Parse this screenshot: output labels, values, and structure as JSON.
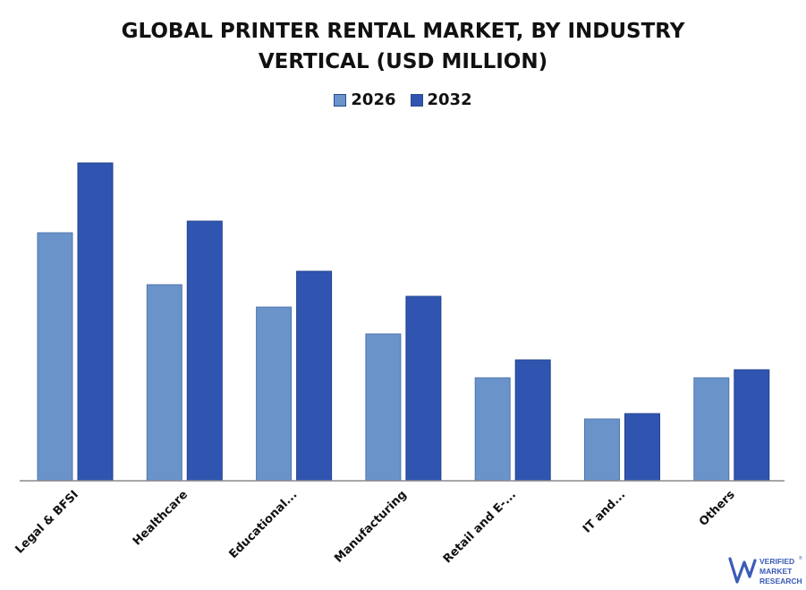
{
  "chart_data": {
    "type": "bar",
    "title": "GLOBAL PRINTER RENTAL MARKET, BY INDUSTRY VERTICAL (USD MILLION)",
    "title_lines": [
      "GLOBAL PRINTER RENTAL MARKET, BY INDUSTRY",
      "VERTICAL (USD MILLION)"
    ],
    "categories": [
      "Legal & BFSI",
      "Healthcare",
      "Educational...",
      "Manufacturing",
      "Retail and E-...",
      "IT and...",
      "Others"
    ],
    "series": [
      {
        "name": "2026",
        "color": "#6a93ca",
        "values": [
          277,
          219,
          194,
          164,
          115,
          69,
          115
        ]
      },
      {
        "name": "2032",
        "color": "#3055b0",
        "values": [
          355,
          290,
          234,
          206,
          135,
          75,
          124
        ]
      }
    ],
    "xlabel": "",
    "ylabel": "",
    "ylim": [
      0,
      360
    ],
    "grid": false,
    "legend_position": "top-center",
    "y_axis_shown": false
  },
  "logo": {
    "line1": "VERIFIED",
    "line2": "MARKET",
    "line3": "RESEARCH",
    "registered": "®",
    "color": "#3a5bb8"
  }
}
